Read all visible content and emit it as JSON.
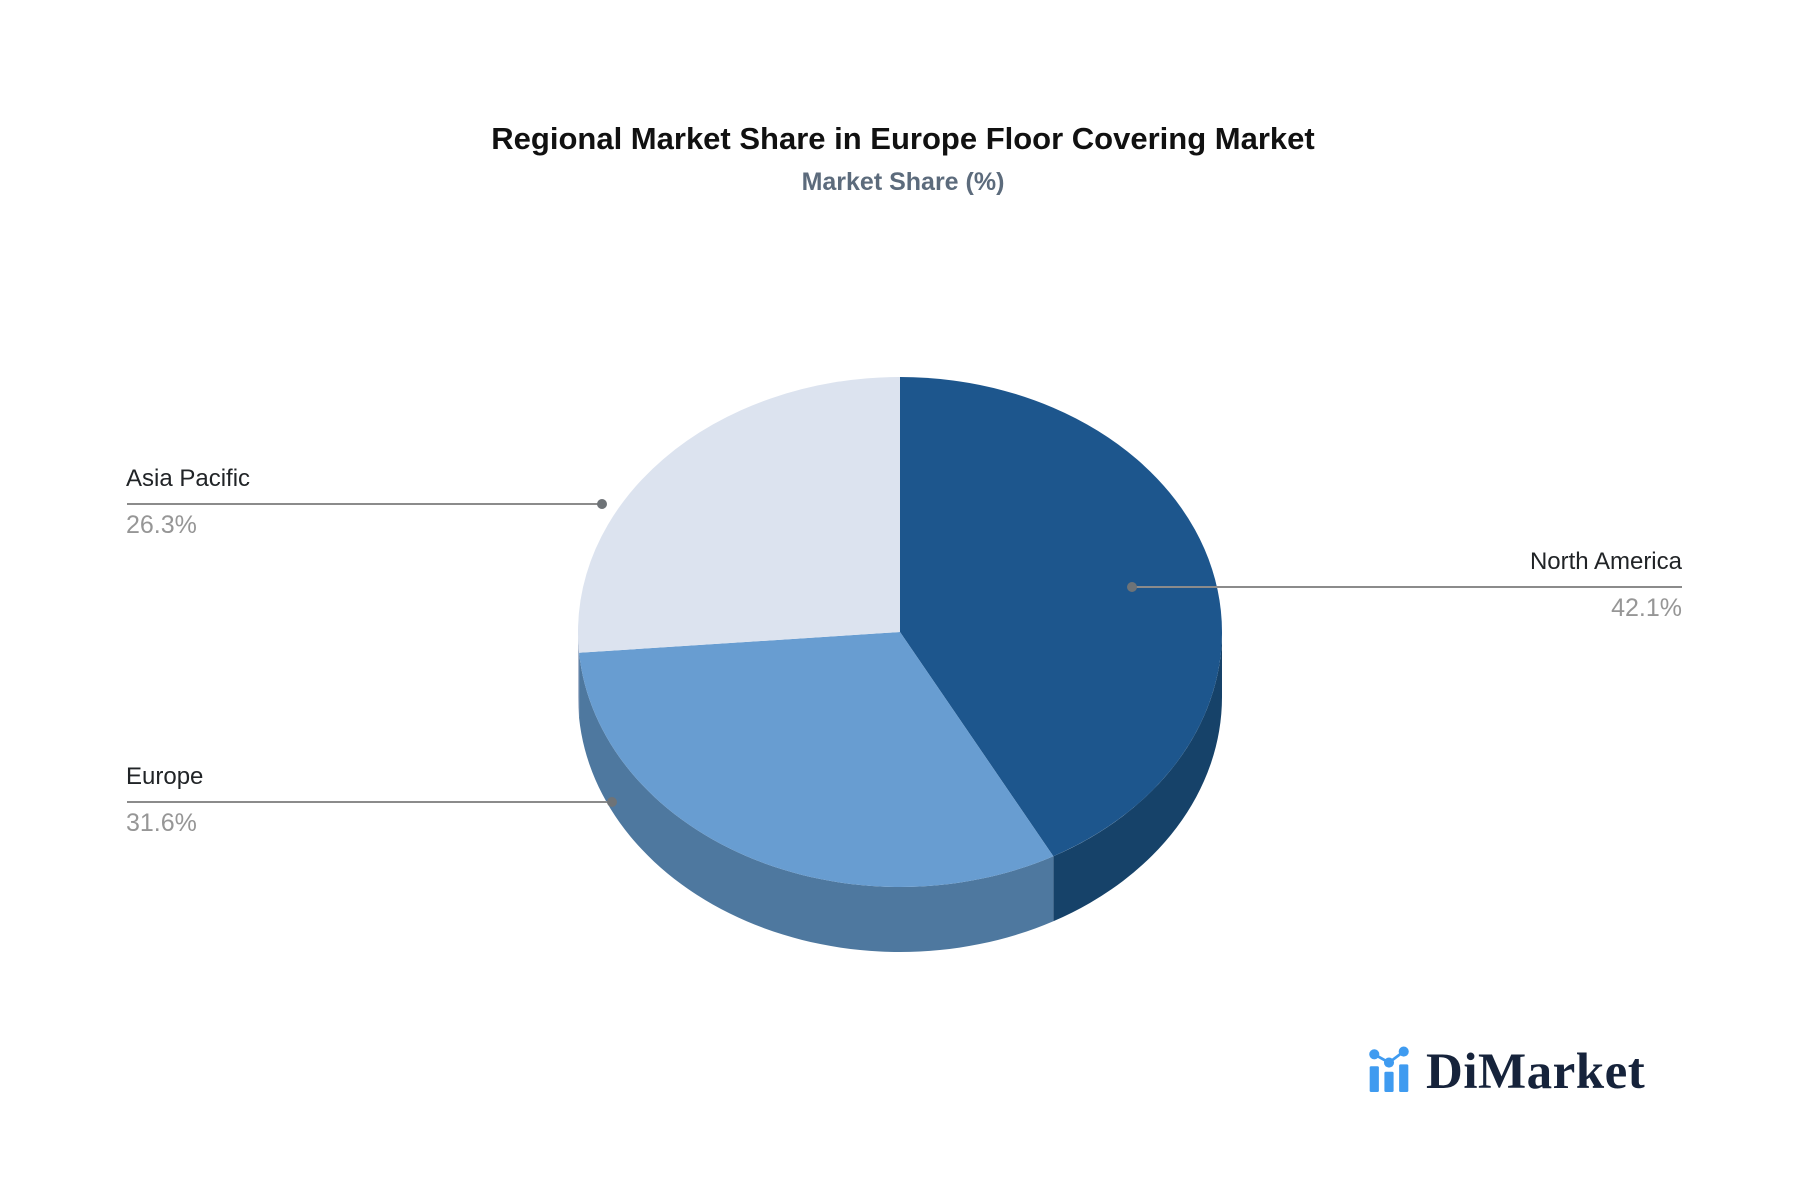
{
  "chart_data": {
    "type": "pie",
    "title": "Regional Market Share in Europe Floor Covering Market",
    "subtitle": "Market Share (%)",
    "unit": "%",
    "style": "3d",
    "direction": "clockwise",
    "start_angle": "12-oclock",
    "legend_position": "none",
    "slices": [
      {
        "label": "North America",
        "value": 42.1,
        "display_value": "42.1%",
        "color": "#1d568d",
        "side_color": "#164269"
      },
      {
        "label": "Europe",
        "value": 31.6,
        "display_value": "31.6%",
        "color": "#689dd1",
        "side_color": "#4e789f"
      },
      {
        "label": "Asia Pacific",
        "value": 26.3,
        "display_value": "26.3%",
        "color": "#dce3ef",
        "side_color": "#a9b7cd"
      }
    ],
    "colors": {
      "title": "#111111",
      "subtitle": "#5c6b7c",
      "label_name": "#212427",
      "label_value": "#969696",
      "connector_line": "#8b8b8b",
      "connector_dot": "#6e7377",
      "background": "#ffffff"
    }
  },
  "logo": {
    "text": "DiMarket",
    "icon": "bar-chart-trend-icon",
    "icon_color": "#3f9bf0",
    "text_color": "#16233b"
  }
}
